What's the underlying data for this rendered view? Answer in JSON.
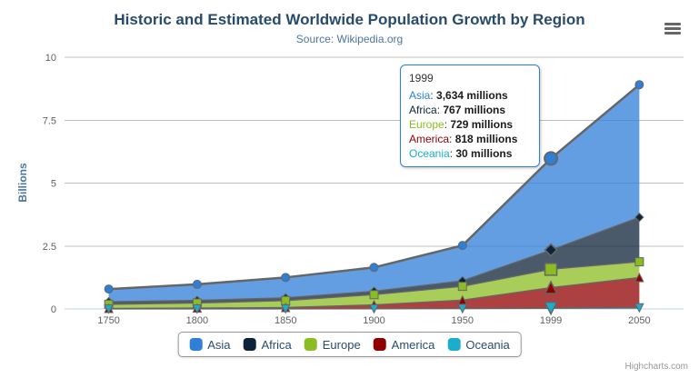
{
  "chart_data": {
    "type": "area",
    "stacking": "normal",
    "title": "Historic and Estimated Worldwide Population Growth by Region",
    "subtitle": "Source: Wikipedia.org",
    "ylabel": "Billions",
    "unit": "millions",
    "categories": [
      "1750",
      "1800",
      "1850",
      "1900",
      "1950",
      "1999",
      "2050"
    ],
    "ylim": [
      0,
      10
    ],
    "yticks": [
      "0",
      "2.5",
      "5",
      "7.5",
      "10"
    ],
    "grid": true,
    "legend_position": "bottom",
    "hover_category_index": 5,
    "line_color": "#666666",
    "fill_opacity": 0.75,
    "colors": {
      "grid": "#C0C0C0",
      "axis_line": "#C0D0E0",
      "axis_labels": "#606060",
      "title": "#274b6d",
      "subtitle": "#4d759e"
    },
    "stack_order_bottom_to_top": [
      "Oceania",
      "America",
      "Europe",
      "Africa",
      "Asia"
    ],
    "series": [
      {
        "name": "Asia",
        "color": "#2f7ed8",
        "marker": "circle",
        "values_millions": [
          502,
          635,
          809,
          947,
          1402,
          3634,
          5268
        ]
      },
      {
        "name": "Africa",
        "color": "#0d233a",
        "marker": "diamond",
        "values_millions": [
          106,
          107,
          111,
          133,
          221,
          767,
          1766
        ]
      },
      {
        "name": "Europe",
        "color": "#8bbc21",
        "marker": "square",
        "values_millions": [
          163,
          203,
          276,
          408,
          547,
          729,
          628
        ]
      },
      {
        "name": "America",
        "color": "#910000",
        "marker": "triangle",
        "values_millions": [
          18,
          31,
          54,
          156,
          339,
          818,
          1201
        ]
      },
      {
        "name": "Oceania",
        "color": "#1aadce",
        "marker": "triangle-down",
        "values_millions": [
          2,
          2,
          2,
          6,
          13,
          30,
          46
        ]
      }
    ]
  },
  "tooltip": {
    "header": "1999",
    "rows": [
      {
        "name": "Asia",
        "value": "3,634 millions"
      },
      {
        "name": "Africa",
        "value": "767 millions"
      },
      {
        "name": "Europe",
        "value": "729 millions"
      },
      {
        "name": "America",
        "value": "818 millions"
      },
      {
        "name": "Oceania",
        "value": "30 millions"
      }
    ]
  },
  "legend": {
    "items": [
      "Asia",
      "Africa",
      "Europe",
      "America",
      "Oceania"
    ]
  },
  "credits": "Highcharts.com"
}
